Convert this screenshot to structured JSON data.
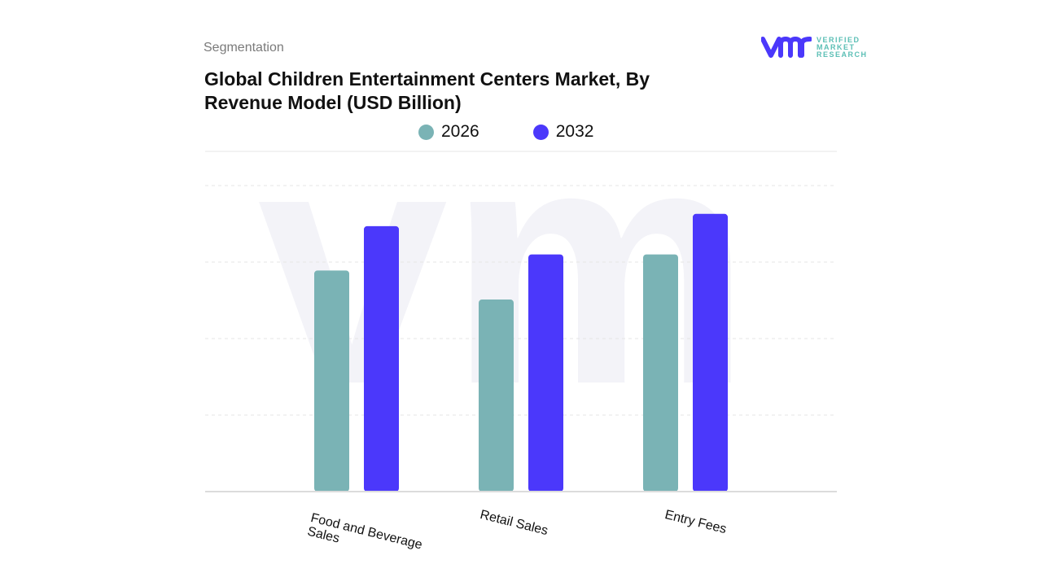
{
  "header": {
    "segment_label": "Segmentation",
    "title": "Global Children Entertainment Centers Market, By Revenue Model (USD Billion)"
  },
  "logo": {
    "mark": "vmr",
    "text_lines": [
      "VERIFIED",
      "MARKET",
      "RESEARCH"
    ]
  },
  "chart_data": {
    "type": "bar",
    "title": "Global Children Entertainment Centers Market, By Revenue Model (USD Billion)",
    "categories": [
      "Food and Beverage Sales",
      "Retail Sales",
      "Entry Fees"
    ],
    "series": [
      {
        "name": "2026",
        "color": "#7ab3b5",
        "values": [
          2.89,
          2.51,
          3.1
        ]
      },
      {
        "name": "2032",
        "color": "#4b38fb",
        "values": [
          3.47,
          3.1,
          3.63
        ]
      }
    ],
    "ylim": [
      0,
      4
    ],
    "grid": true,
    "legend_position": "top",
    "xlabel": "",
    "ylabel": ""
  }
}
